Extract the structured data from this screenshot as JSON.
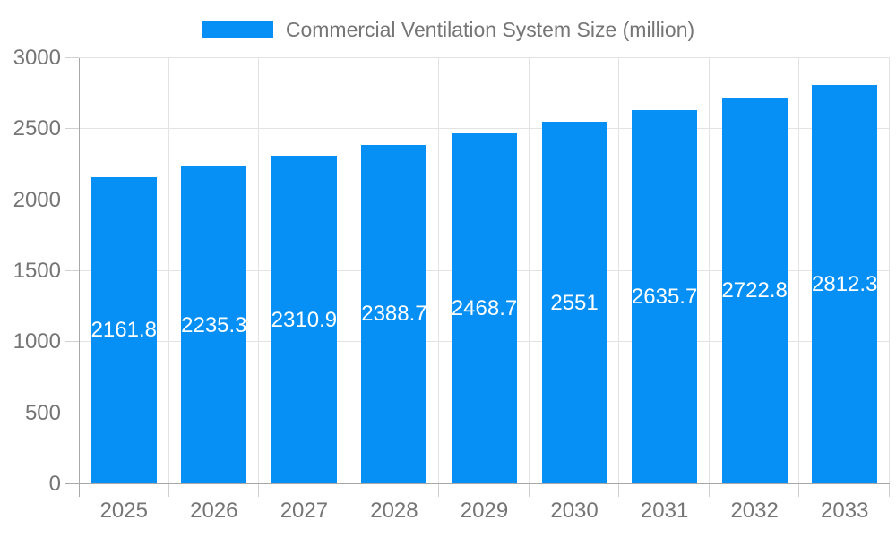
{
  "chart_data": {
    "type": "bar",
    "categories": [
      "2025",
      "2026",
      "2027",
      "2028",
      "2029",
      "2030",
      "2031",
      "2032",
      "2033"
    ],
    "series": [
      {
        "name": "Commercial Ventilation System Size (million)",
        "values": [
          2161.8,
          2235.3,
          2310.9,
          2388.7,
          2468.7,
          2551,
          2635.7,
          2722.8,
          2812.3
        ],
        "value_labels": [
          "2161.8",
          "2235.3",
          "2310.9",
          "2388.7",
          "2468.7",
          "2551",
          "2635.7",
          "2722.8",
          "2812.3"
        ]
      }
    ],
    "xlabel": "",
    "ylabel": "",
    "ylim": [
      0,
      3000
    ],
    "yticks": [
      0,
      500,
      1000,
      1500,
      2000,
      2500,
      3000
    ],
    "ytick_labels": [
      "0",
      "500",
      "1000",
      "1500",
      "2000",
      "2500",
      "3000"
    ],
    "grid": true,
    "legend_position": "top",
    "colors": {
      "bar": "#0690f5",
      "value_label": "#ffffff",
      "axis_text": "#757575",
      "grid": "#e3e3e3",
      "axis_line": "#a8a8a8",
      "tick": "#d0d0d0"
    }
  }
}
